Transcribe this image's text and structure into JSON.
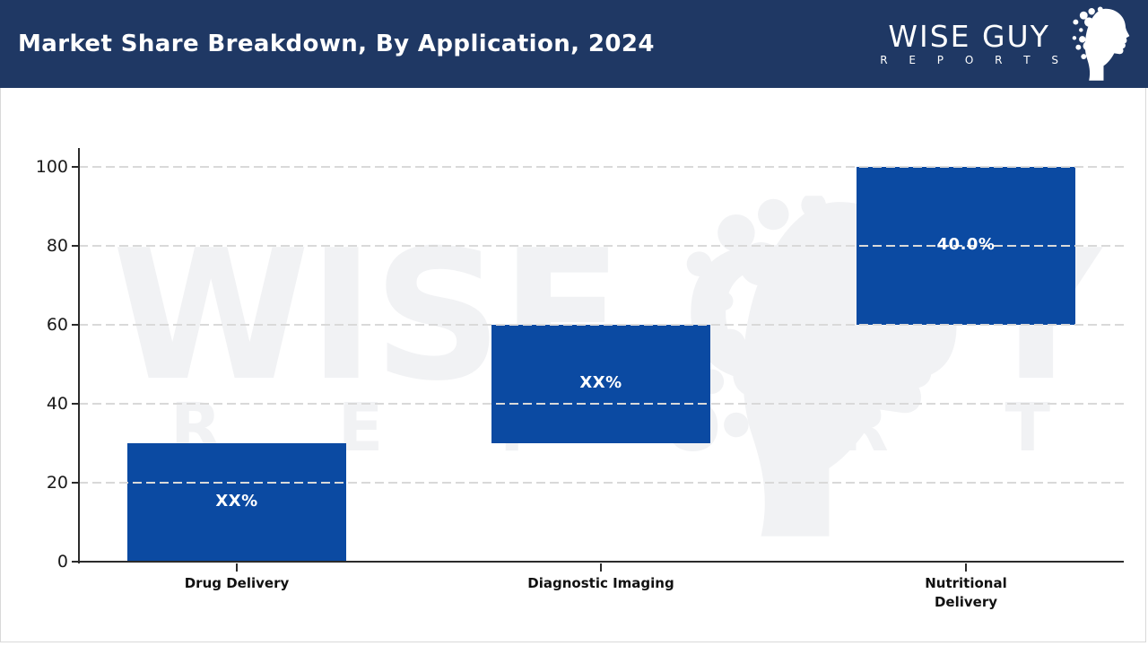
{
  "header": {
    "title": "Market Share Breakdown, By Application, 2024",
    "bg_color": "#1F3864",
    "logo": {
      "line1": "WISE GUY",
      "line2": "R E P O R T S"
    }
  },
  "watermark": {
    "line1": "WISE GUY",
    "line2": "R E P O R T S"
  },
  "chart_data": {
    "type": "bar",
    "variant": "waterfall-floating-bars",
    "title": "Market Share Breakdown, By Application, 2024",
    "categories": [
      "Drug Delivery",
      "Diagnostic Imaging",
      "Nutritional\nDelivery"
    ],
    "segments": [
      {
        "category": "Drug Delivery",
        "start": 0,
        "end": 30,
        "label": "XX%"
      },
      {
        "category": "Diagnostic Imaging",
        "start": 30,
        "end": 60,
        "label": "XX%"
      },
      {
        "category": "Nutritional Delivery",
        "start": 60,
        "end": 100,
        "label": "40.0%"
      }
    ],
    "xlabel": "",
    "ylabel": "",
    "ylim": [
      0,
      100
    ],
    "yticks": [
      0,
      20,
      40,
      60,
      80,
      100
    ],
    "grid": "horizontal dashed, drawn over bars",
    "legend": "none",
    "bar_color": "#0B4AA2",
    "bar_label_color": "#ffffff",
    "axis_color": "#2b2b2b",
    "gridline_color": "#d9d9d9"
  }
}
